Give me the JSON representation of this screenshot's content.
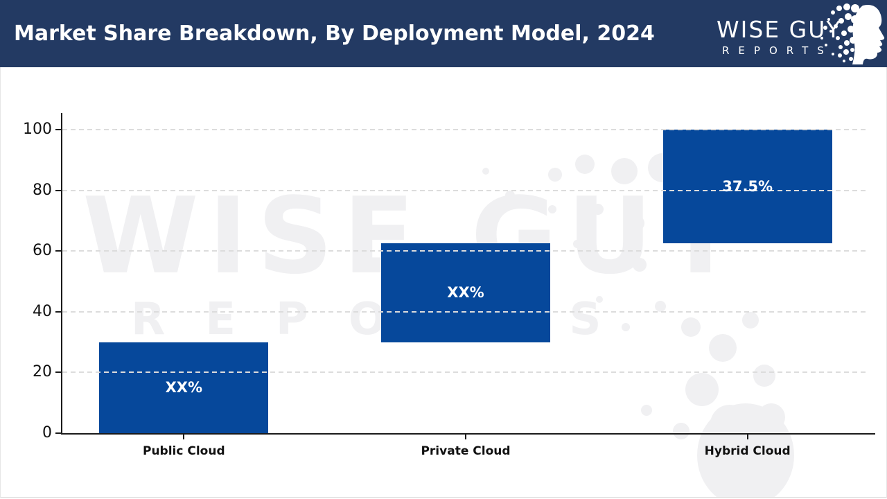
{
  "header": {
    "title": "Market Share Breakdown, By Deployment Model, 2024",
    "logo": {
      "brand": "WISE GUY",
      "tagline": "REPORTS"
    }
  },
  "watermark": {
    "brand": "WISE GUY",
    "tagline": "REPORTS"
  },
  "chart_data": {
    "type": "bar",
    "variant": "stacked_percentage_waterfall",
    "title": "Market Share Breakdown, By Deployment Model, 2024",
    "categories": [
      "Public Cloud",
      "Private Cloud",
      "Hybrid Cloud"
    ],
    "bars": [
      {
        "category": "Public Cloud",
        "start": 0,
        "end": 30,
        "label": "XX%"
      },
      {
        "category": "Private Cloud",
        "start": 30,
        "end": 62.5,
        "label": "XX%"
      },
      {
        "category": "Hybrid Cloud",
        "start": 62.5,
        "end": 100,
        "label": "37.5%"
      }
    ],
    "xlabel": "",
    "ylabel": "",
    "ylim": [
      0,
      100
    ],
    "yticks": [
      0,
      20,
      40,
      60,
      80,
      100
    ],
    "grid": "horizontal-dashed-above-bars",
    "legend": "none",
    "bar_color": "#06489b",
    "bar_label_color": "#ffffff"
  },
  "colors": {
    "header_bg": "#233a63",
    "bar": "#06489b",
    "gridline": "#dcdcdc",
    "axis": "#1a1a1a",
    "watermark": "#f0f0f2",
    "page_bg": "#ffffff",
    "border": "#d9d9d9"
  }
}
